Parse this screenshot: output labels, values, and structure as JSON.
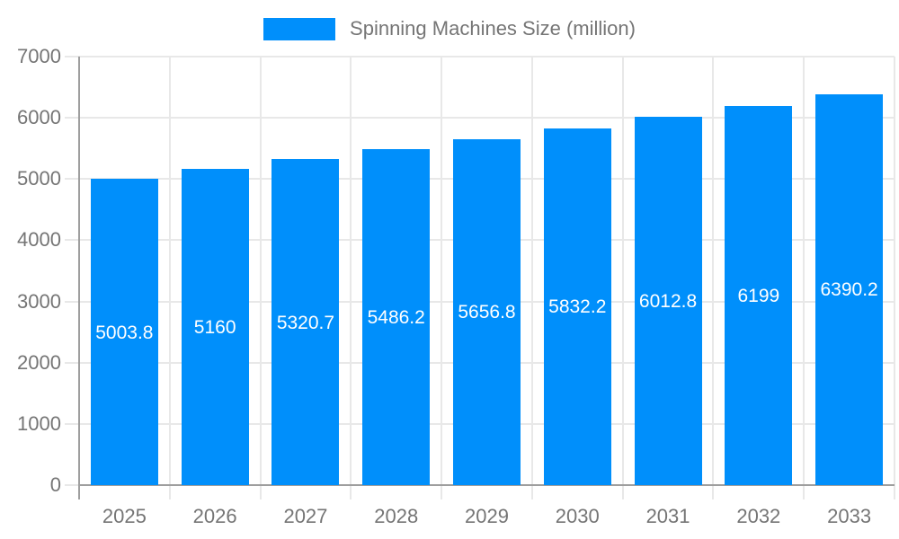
{
  "legend": {
    "label": "Spinning Machines Size (million)",
    "swatch_color": "#008FFB"
  },
  "chart_data": {
    "type": "bar",
    "title": "",
    "categories": [
      "2025",
      "2026",
      "2027",
      "2028",
      "2029",
      "2030",
      "2031",
      "2032",
      "2033"
    ],
    "series": [
      {
        "name": "Spinning Machines Size (million)",
        "values": [
          5003.8,
          5160,
          5320.7,
          5486.2,
          5656.8,
          5832.2,
          6012.8,
          6199,
          6390.2
        ],
        "value_labels": [
          "5003.8",
          "5160",
          "5320.7",
          "5486.2",
          "5656.8",
          "5832.2",
          "6012.8",
          "6199",
          "6390.2"
        ],
        "color": "#008FFB"
      }
    ],
    "xlabel": "",
    "ylabel": "",
    "ylim": [
      0,
      7000
    ],
    "ytick_interval": 1000,
    "ytick_labels": [
      "0",
      "1000",
      "2000",
      "3000",
      "4000",
      "5000",
      "6000",
      "7000"
    ],
    "grid": "horizontal-and-vertical",
    "legend_position": "top",
    "value_label_position": "inside-center",
    "value_label_color": "#ffffff"
  },
  "colors": {
    "bar": "#008FFB",
    "gridline": "#e8e8e8",
    "axis_line": "#9e9e9e",
    "axis_text": "#757575",
    "background": "#ffffff"
  }
}
